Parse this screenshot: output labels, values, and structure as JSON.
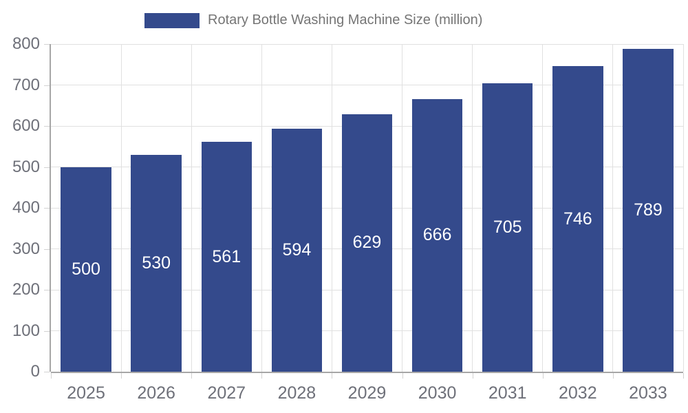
{
  "legend": {
    "label": "Rotary Bottle Washing Machine Size (million)"
  },
  "chart_data": {
    "type": "bar",
    "title": "Rotary Bottle Washing Machine Size (million)",
    "categories": [
      "2025",
      "2026",
      "2027",
      "2028",
      "2029",
      "2030",
      "2031",
      "2032",
      "2033"
    ],
    "series": [
      {
        "name": "Rotary Bottle Washing Machine Size (million)",
        "values": [
          500,
          530,
          561,
          594,
          629,
          666,
          705,
          746,
          789
        ]
      }
    ],
    "xlabel": "",
    "ylabel": "",
    "ylim": [
      0,
      800
    ],
    "yticks": [
      0,
      100,
      200,
      300,
      400,
      500,
      600,
      700,
      800
    ],
    "grid": true,
    "legend_position": "top",
    "value_label_position": "inside-center",
    "colors": {
      "bar": "#344a8c",
      "grid_line": "#e0e0e0",
      "axis_line": "#a6a6a6",
      "tick": "#d2d2d2",
      "axis_text": "#6e7079",
      "legend_text": "#757575",
      "value_text": "#ffffff",
      "background": "#ffffff"
    }
  }
}
